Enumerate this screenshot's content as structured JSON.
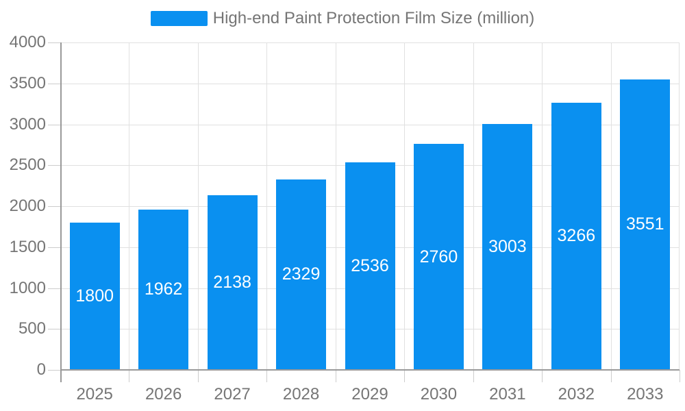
{
  "chart_data": {
    "type": "bar",
    "title": "High-end Paint Protection Film Size (million)",
    "categories": [
      "2025",
      "2026",
      "2027",
      "2028",
      "2029",
      "2030",
      "2031",
      "2032",
      "2033"
    ],
    "series": [
      {
        "name": "High-end Paint Protection Film Size (million)",
        "values": [
          1800,
          1962,
          2138,
          2329,
          2536,
          2760,
          3003,
          3266,
          3551
        ]
      }
    ],
    "xlabel": "",
    "ylabel": "",
    "ylim": [
      0,
      4000
    ],
    "yticks": [
      0,
      500,
      1000,
      1500,
      2000,
      2500,
      3000,
      3500,
      4000
    ],
    "grid": true,
    "legend_position": "top",
    "value_labels": "inside-center"
  },
  "colors": {
    "bar": "#0a90f0",
    "value_label": "#ffffff",
    "axis_line": "#999999",
    "gridline": "#e0e0e0",
    "tick": "#cccccc",
    "axis_text": "#757575",
    "legend_text": "#757575",
    "background": "#ffffff"
  }
}
